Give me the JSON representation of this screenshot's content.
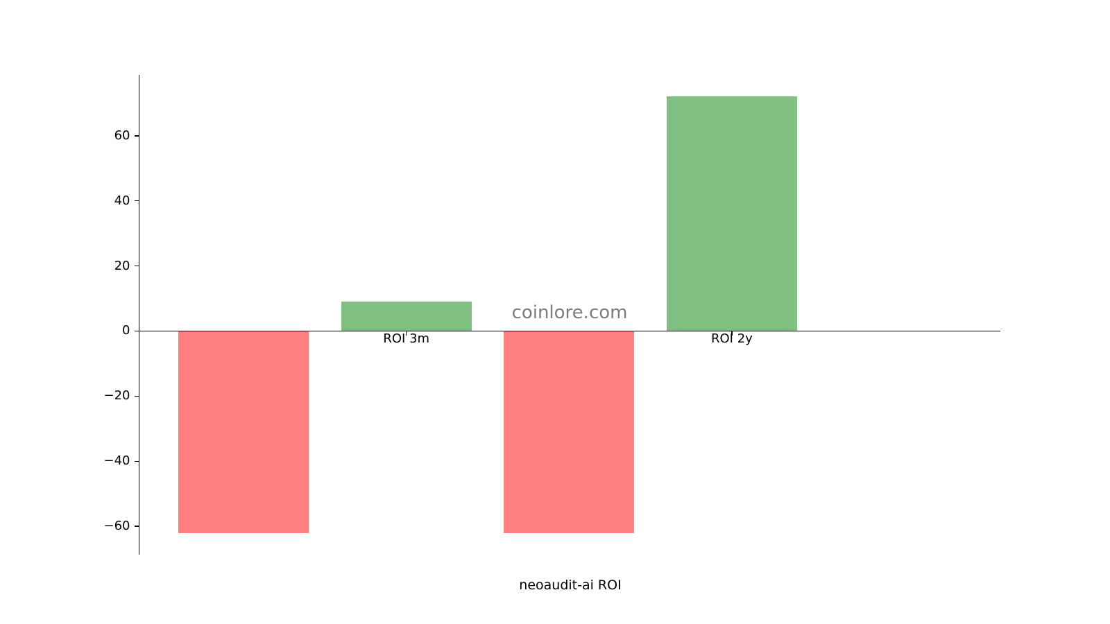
{
  "figure": {
    "background": "#ffffff"
  },
  "chart_data": {
    "type": "bar",
    "title": "",
    "xlabel": "neoaudit-ai ROI",
    "ylabel": "",
    "watermark": "coinlore.com",
    "watermark_color": "#7d7d7d",
    "categories": [
      "",
      "ROI 3m",
      "",
      "ROI 2y"
    ],
    "x": [
      0,
      1,
      2,
      3
    ],
    "values": [
      -62,
      9,
      -62,
      72
    ],
    "bar_colors": [
      "#ff7f7f",
      "#7fbf7f",
      "#ff7f7f",
      "#7fbf7f"
    ],
    "negative_color": "#ff7f7f",
    "positive_color": "#7fbf7f",
    "bar_width": 0.8,
    "xlim": [
      -0.64,
      4.65
    ],
    "ylim": [
      -68.7,
      78.7
    ],
    "yticks": [
      60,
      40,
      20,
      0,
      -20,
      -40,
      -60
    ],
    "ytick_labels": [
      "60",
      "40",
      "20",
      "0",
      "−20",
      "−40",
      "−60"
    ],
    "xticks": [
      1,
      3
    ],
    "xtick_labels": [
      "ROI 3m",
      "ROI 2y"
    ],
    "grid": false,
    "legend": null,
    "axis_color": "#000000"
  }
}
